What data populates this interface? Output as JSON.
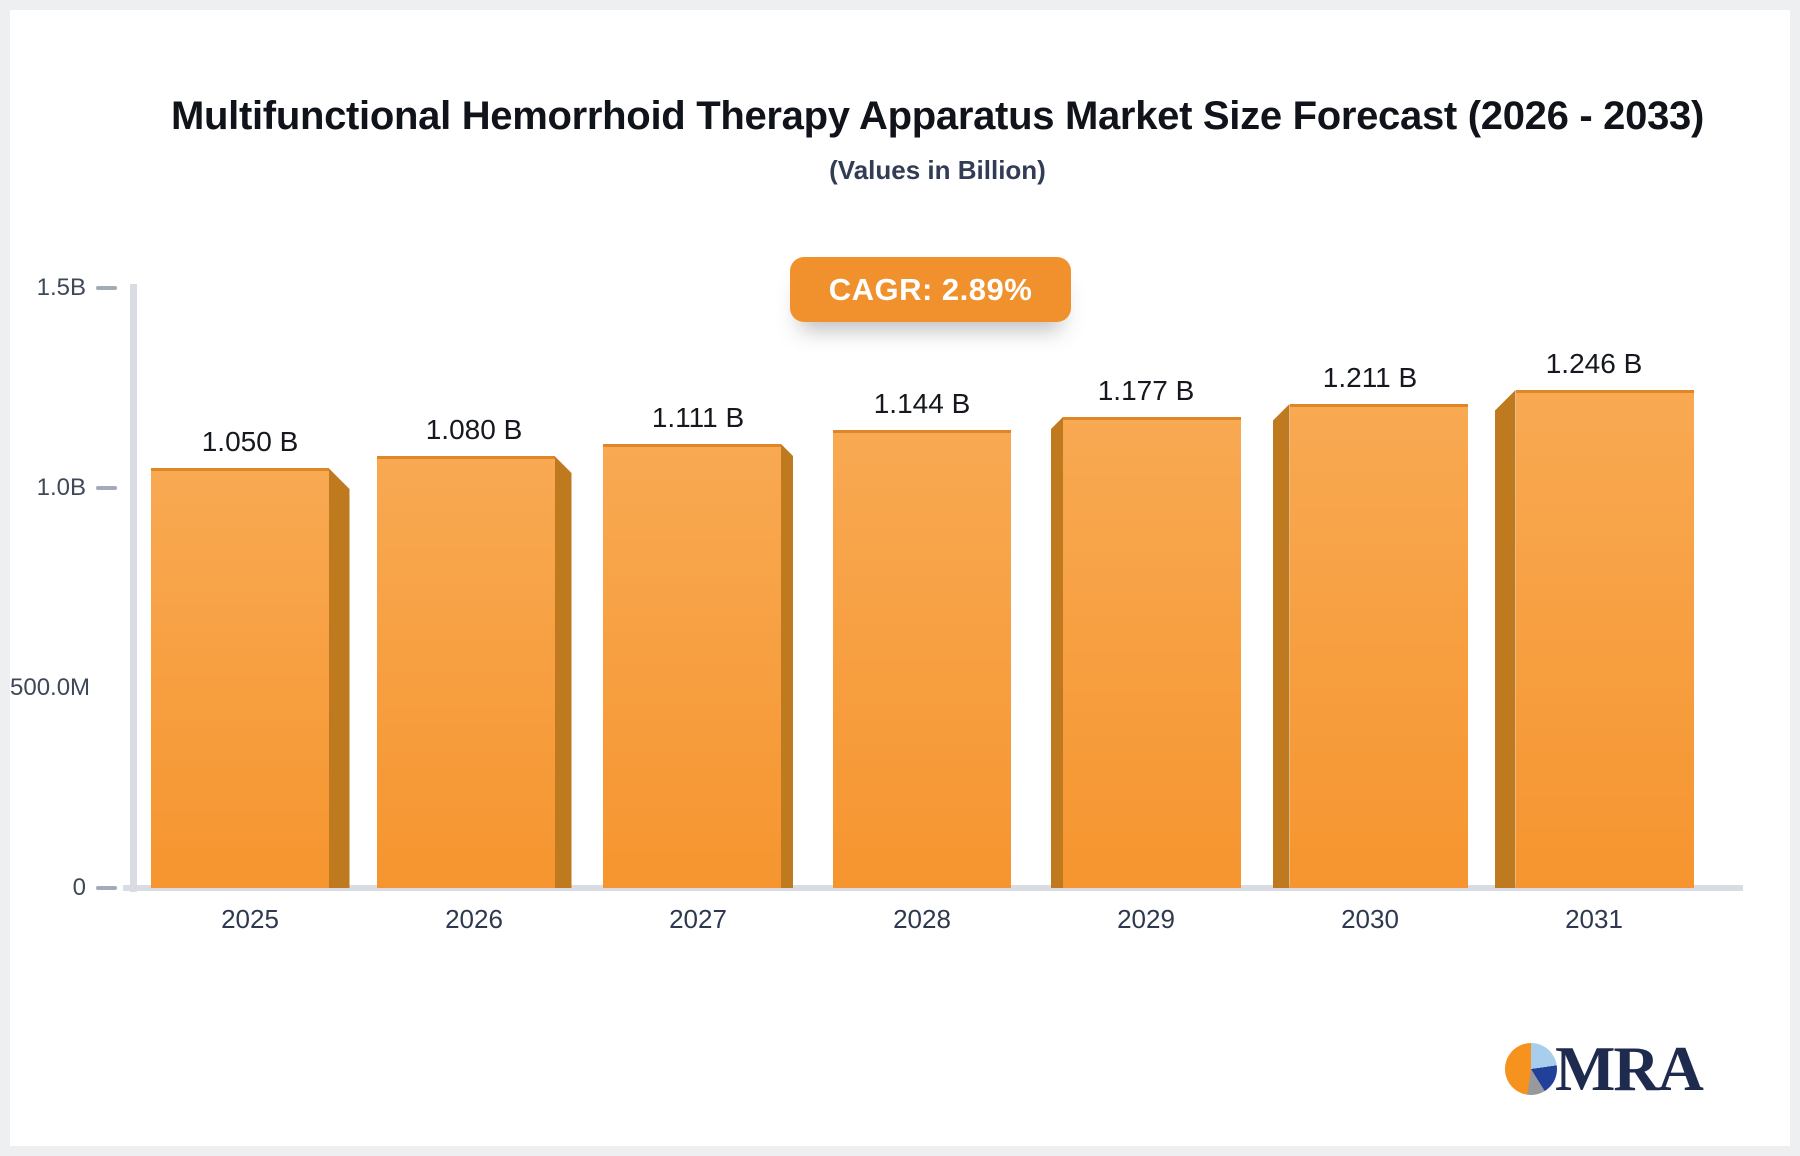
{
  "page": {
    "title": "Multifunctional Hemorrhoid Therapy Apparatus Market Size Forecast (2026 - 2033)",
    "subtitle": "(Values in Billion)",
    "cagr_badge": "CAGR: 2.89%"
  },
  "chart_data": {
    "type": "bar",
    "title": "Multifunctional Hemorrhoid Therapy Apparatus Market Size Forecast (2026 - 2033)",
    "subtitle": "(Values in Billion)",
    "cagr": "2.89%",
    "unit": "Billion",
    "categories": [
      "2025",
      "2026",
      "2027",
      "2028",
      "2029",
      "2030",
      "2031"
    ],
    "values": [
      1.05,
      1.08,
      1.111,
      1.144,
      1.177,
      1.211,
      1.246
    ],
    "value_labels": [
      "1.050 B",
      "1.080 B",
      "1.111 B",
      "1.144 B",
      "1.177 B",
      "1.211 B",
      "1.246 B"
    ],
    "ylim": [
      0,
      1.5
    ],
    "y_ticks": [
      {
        "label": "1.5B",
        "value": 1.5,
        "dash": true
      },
      {
        "label": "1.0B",
        "value": 1.0,
        "dash": true
      },
      {
        "label": "500.0M",
        "value": 0.5,
        "dash": false
      },
      {
        "label": "0",
        "value": 0,
        "dash": true
      }
    ],
    "grid": false,
    "legend": false,
    "bar_style": "3d-perspective",
    "colors": {
      "bar_top": "#f8a952",
      "bar_bottom": "#f6952f",
      "bar_side": "#bf7a1f",
      "badge_bg": "#f0912d",
      "axis_line": "#d9dde3",
      "tick_text": "#3e4857",
      "value_label_text": "#15181e",
      "xlabel_text": "#2e3950"
    }
  },
  "logo": {
    "text": "MRA",
    "icon": "pie-chart-icon",
    "colors": {
      "orange": "#f6921e",
      "light_blue": "#a9cdec",
      "navy": "#20409a",
      "gray": "#98999d",
      "text": "#1f2b4e"
    }
  }
}
